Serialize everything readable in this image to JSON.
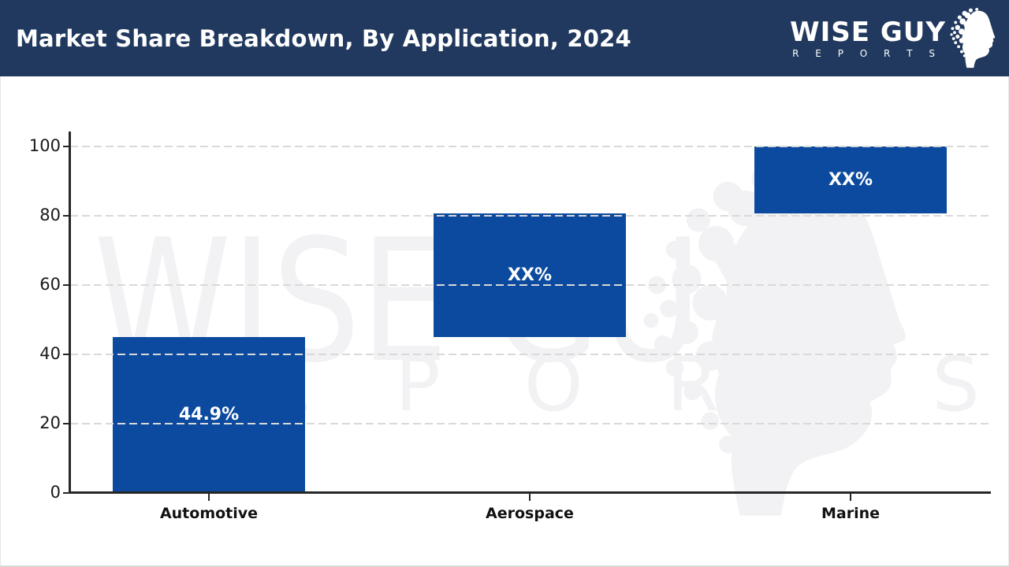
{
  "header": {
    "title": "Market Share Breakdown, By Application, 2024",
    "logo": {
      "line1": "WISE GUY",
      "line2": "R E P O R T S"
    }
  },
  "watermark": {
    "line1": "WISE GUY",
    "line2": "R E P O R T S"
  },
  "colors": {
    "header_bg": "#21395e",
    "bar": "#0b4a9e",
    "grid": "#d9d9d9",
    "axis": "#262626",
    "watermark": "#f2f2f4",
    "bar_label": "#ffffff"
  },
  "chart_data": {
    "type": "bar",
    "subtype": "waterfall-stepped",
    "title": "Market Share Breakdown, By Application, 2024",
    "xlabel": "",
    "ylabel": "",
    "categories": [
      "Automotive",
      "Aerospace",
      "Marine"
    ],
    "bars": [
      {
        "category": "Automotive",
        "start": 0,
        "end": 44.9,
        "label": "44.9%"
      },
      {
        "category": "Aerospace",
        "start": 44.9,
        "end": 80.6,
        "label": "XX%"
      },
      {
        "category": "Marine",
        "start": 80.6,
        "end": 100,
        "label": "XX%"
      }
    ],
    "yticks": [
      0,
      20,
      40,
      60,
      80,
      100
    ],
    "ylim": [
      0,
      104.3
    ],
    "grid": "dashed-horizontal",
    "legend": "none"
  }
}
